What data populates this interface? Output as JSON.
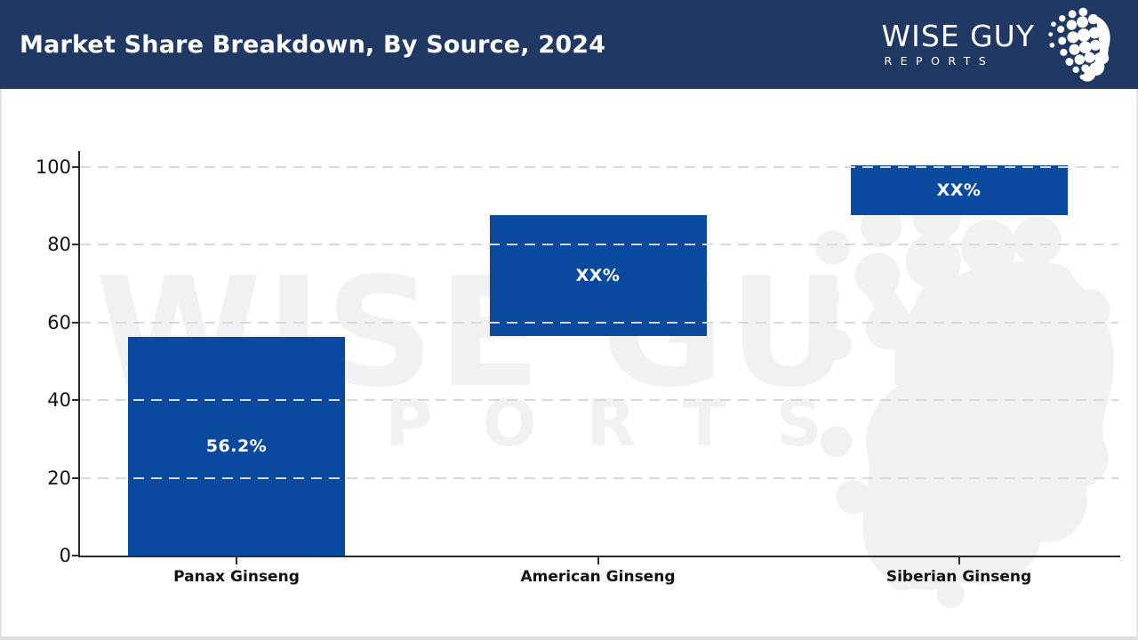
{
  "header": {
    "title": "Market Share Breakdown, By Source, 2024"
  },
  "logo": {
    "name_top": "WISE GUY",
    "name_bottom": "REPORTS"
  },
  "watermark": {
    "top": "WISE GUY",
    "bottom": "REPORTS"
  },
  "colors": {
    "header_bg": "#203864",
    "bar_fill": "#0A4A9E",
    "grid_line": "#d9d9d9",
    "axis_line": "#2b2b2b",
    "tick_text": "#111111",
    "bar_label_text": "#ffffff",
    "watermark_text": "#f1f1f1",
    "frame_border": "#e3e3e3"
  },
  "chart_data": {
    "type": "bar",
    "subtype": "floating-stacked-percentage",
    "title": "Market Share Breakdown, By Source, 2024",
    "categories": [
      "Panax Ginseng",
      "American Ginseng",
      "Siberian Ginseng"
    ],
    "bars": [
      {
        "category": "Panax Ginseng",
        "start": 0,
        "end": 56.2,
        "label": "56.2%"
      },
      {
        "category": "American Ginseng",
        "start": 56.5,
        "end": 87.5,
        "label": "XX%"
      },
      {
        "category": "Siberian Ginseng",
        "start": 87.6,
        "end": 100.4,
        "label": "XX%"
      }
    ],
    "bar_color": "#0A4A9E",
    "value_label_color": "#ffffff",
    "xlabel": "",
    "ylabel": "",
    "yticks": [
      0,
      20,
      40,
      60,
      80,
      100
    ],
    "ylim": [
      0,
      104
    ],
    "grid": "horizontal-dashed",
    "legend": "none"
  }
}
